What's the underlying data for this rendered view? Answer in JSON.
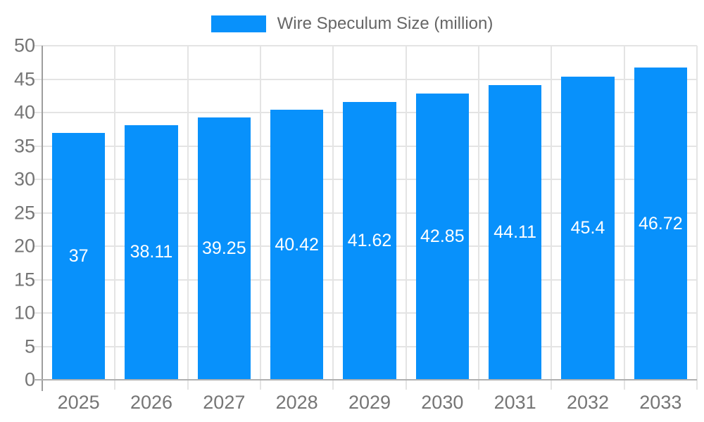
{
  "legend": {
    "label": "Wire Speculum Size (million)"
  },
  "colors": {
    "bar": "#0891fb",
    "bar_label": "#ffffff",
    "axis_label": "#757575",
    "legend_text": "#666666",
    "gridline": "#e4e4e4",
    "axis_line_y": "#9e9e9e",
    "axis_line_x": "#b0b0b0",
    "background": "#ffffff"
  },
  "chart_data": {
    "type": "bar",
    "title": "Wire Speculum Size (million)",
    "series_name": "Wire Speculum Size (million)",
    "categories": [
      "2025",
      "2026",
      "2027",
      "2028",
      "2029",
      "2030",
      "2031",
      "2032",
      "2033"
    ],
    "values": [
      37,
      38.11,
      39.25,
      40.42,
      41.62,
      42.85,
      44.11,
      45.4,
      46.72
    ],
    "value_labels": [
      "37",
      "38.11",
      "39.25",
      "40.42",
      "41.62",
      "42.85",
      "44.11",
      "45.4",
      "46.72"
    ],
    "xlabel": "",
    "ylabel": "",
    "ylim": [
      0,
      50
    ],
    "yticks": [
      0,
      5,
      10,
      15,
      20,
      25,
      30,
      35,
      40,
      45,
      50
    ],
    "grid": true,
    "legend_position": "top-center",
    "bar_color": "#0891fb",
    "value_label_position": "inside-center"
  }
}
